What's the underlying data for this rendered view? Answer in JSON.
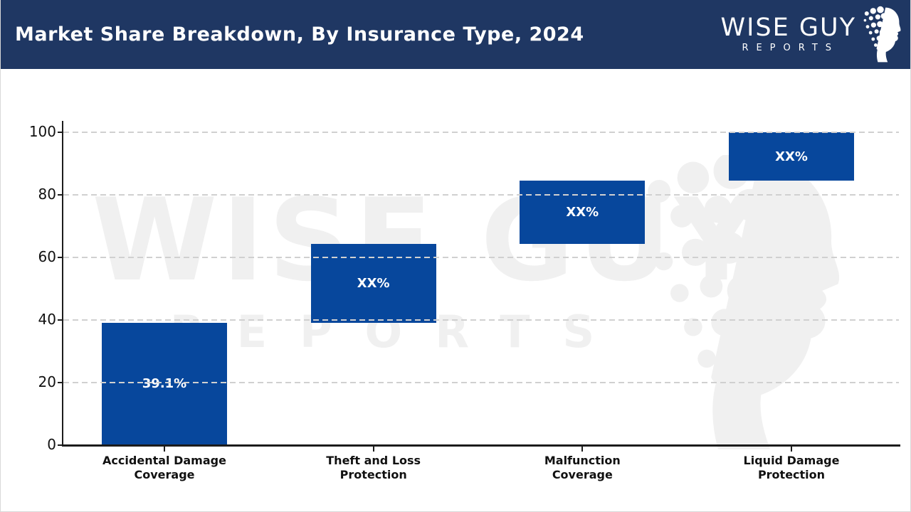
{
  "header": {
    "title": "Market Share Breakdown, By Insurance Type, 2024",
    "logo": {
      "line1": "WISE GUY",
      "line2": "REPORTS"
    }
  },
  "watermark": {
    "line1": "WISE GUY",
    "line2": "REPORTS"
  },
  "colors": {
    "header_bg": "#1f3763",
    "bar": "#07479c",
    "grid": "#d0d0d0",
    "axis": "#1c1c1c",
    "bar_label": "#ffffff",
    "watermark": "#f0f0f0"
  },
  "chart_data": {
    "type": "bar",
    "variant": "waterfall",
    "title": "Market Share Breakdown, By Insurance Type, 2024",
    "categories": [
      "Accidental Damage Coverage",
      "Theft and Loss Protection",
      "Malfunction Coverage",
      "Liquid Damage Protection"
    ],
    "category_label_lines": [
      [
        "Accidental Damage",
        "Coverage"
      ],
      [
        "Theft and Loss",
        "Protection"
      ],
      [
        "Malfunction",
        "Coverage"
      ],
      [
        "Liquid Damage",
        "Protection"
      ]
    ],
    "segments": [
      {
        "category": "Accidental Damage Coverage",
        "start": 0,
        "end": 39.1,
        "delta": 39.1,
        "label": "39.1%"
      },
      {
        "category": "Theft and Loss Protection",
        "start": 39.1,
        "end": 64.3,
        "delta": 25.2,
        "label": "XX%"
      },
      {
        "category": "Malfunction Coverage",
        "start": 64.3,
        "end": 84.5,
        "delta": 20.2,
        "label": "XX%"
      },
      {
        "category": "Liquid Damage Protection",
        "start": 84.5,
        "end": 100,
        "delta": 15.5,
        "label": "XX%"
      }
    ],
    "xlabel": "",
    "ylabel": "",
    "ylim": [
      0,
      100
    ],
    "yticks": [
      0,
      20,
      40,
      60,
      80,
      100
    ],
    "grid": "horizontal-dashed",
    "legend": null
  }
}
